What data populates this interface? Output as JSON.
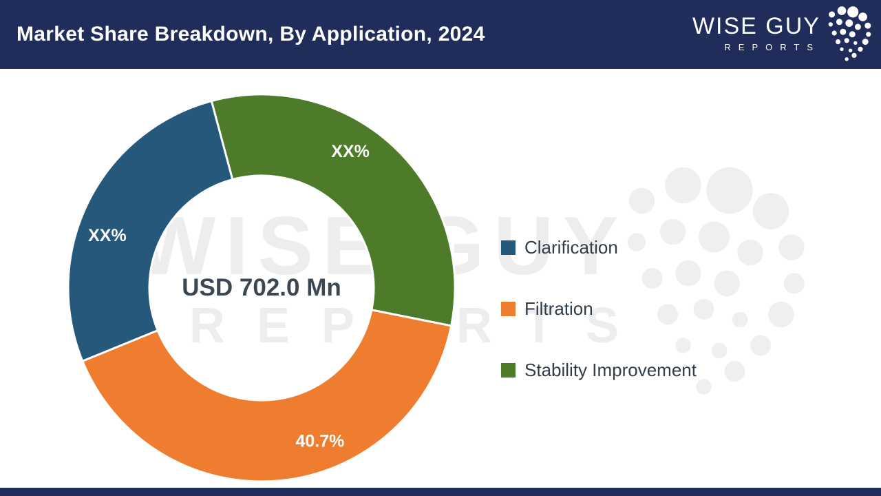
{
  "header": {
    "title": "Market Share Breakdown, By Application, 2024",
    "bg_color": "#202C5A"
  },
  "logo": {
    "line1": "WISE GUY",
    "line2": "REPORTS"
  },
  "watermark": {
    "line1": "WISE GUY",
    "line2": "REPORTS"
  },
  "chart_data": {
    "type": "pie",
    "subtype": "donut",
    "title": "Market Share Breakdown, By Application, 2024",
    "center_label": "USD 702.0 Mn",
    "start_angle_deg": -15,
    "draw_order": [
      2,
      1,
      0
    ],
    "legend_position": "right",
    "segments": [
      {
        "name": "Clarification",
        "value": 27.0,
        "display_label": "XX%",
        "color": "#26587C",
        "label_angle_deg": 289
      },
      {
        "name": "Filtration",
        "value": 40.7,
        "display_label": "40.7%",
        "color": "#EF7D2F",
        "label_angle_deg": 159
      },
      {
        "name": "Stability Improvement",
        "value": 32.3,
        "display_label": "XX%",
        "color": "#4E7B2A",
        "label_angle_deg": 33
      }
    ]
  }
}
